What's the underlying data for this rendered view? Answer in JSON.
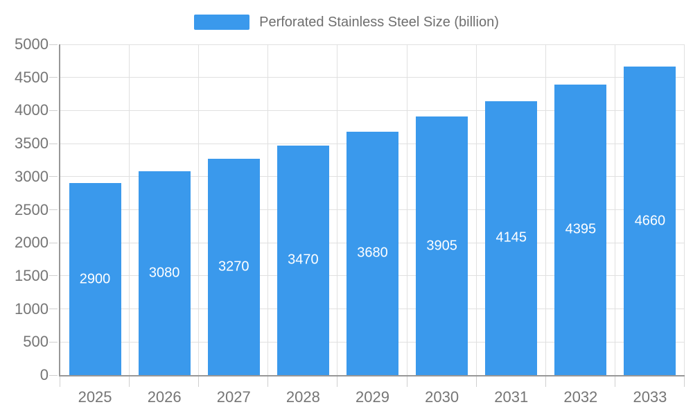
{
  "chart_data": {
    "type": "bar",
    "title": "",
    "legend": {
      "label": "Perforated Stainless Steel Size (billion)",
      "position": "top-center"
    },
    "categories": [
      "2025",
      "2026",
      "2027",
      "2028",
      "2029",
      "2030",
      "2031",
      "2032",
      "2033"
    ],
    "series": [
      {
        "name": "Perforated Stainless Steel Size (billion)",
        "values": [
          2900,
          3080,
          3270,
          3470,
          3680,
          3905,
          4145,
          4395,
          4660
        ]
      }
    ],
    "value_labels": [
      "2900",
      "3080",
      "3270",
      "3470",
      "3680",
      "3905",
      "4145",
      "4395",
      "4660"
    ],
    "value_label_position": "inside-center",
    "xlabel": "",
    "ylabel": "",
    "ylim": [
      0,
      5000
    ],
    "ytick_step": 500,
    "ytick_labels": [
      "0",
      "500",
      "1000",
      "1500",
      "2000",
      "2500",
      "3000",
      "3500",
      "4000",
      "4500",
      "5000"
    ],
    "grid": true,
    "legend_interactive": true,
    "colors": {
      "bar": "#3a99ec",
      "grid_line": "#e0e0e0",
      "axis_line": "#979797",
      "tick_line": "#cfcfcf",
      "axis_text": "#757575",
      "legend_text": "#6e6e6e",
      "value_label_text": "#ffffff",
      "background": "#ffffff"
    }
  }
}
